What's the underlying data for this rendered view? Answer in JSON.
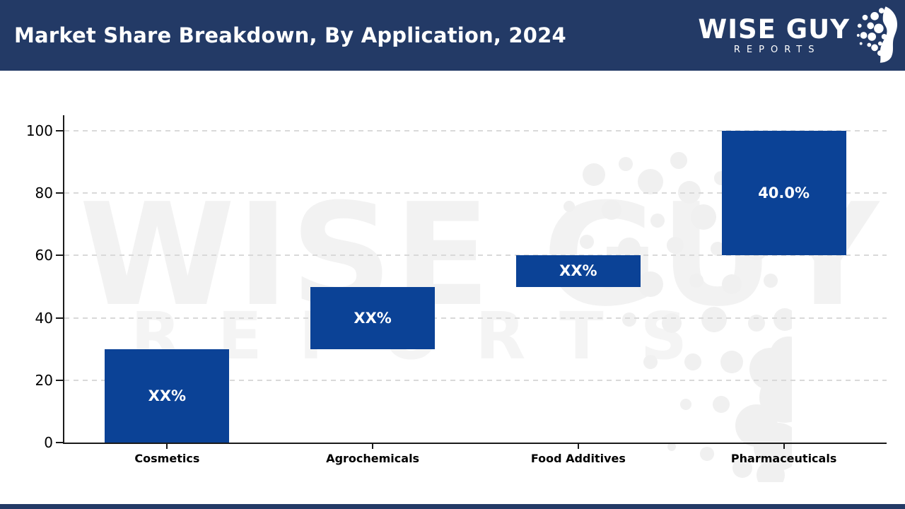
{
  "header": {
    "title": "Market Share Breakdown, By Application, 2024",
    "logo": {
      "name": "Wise Guy Reports",
      "line1": "WISE GUY",
      "line2": "REPORTS"
    }
  },
  "watermark": {
    "line1": "WISE GUY",
    "line2": "REPORTS"
  },
  "footer": {},
  "chart_data": {
    "type": "bar",
    "subtype": "waterfall",
    "title": "Market Share Breakdown, By Application, 2024",
    "categories": [
      "Cosmetics",
      "Agrochemicals",
      "Food Additives",
      "Pharmaceuticals"
    ],
    "series": [
      {
        "name": "Market share (%)",
        "starts": [
          0,
          30,
          50,
          60
        ],
        "ends": [
          30,
          50,
          60,
          100
        ],
        "values": [
          30,
          20,
          10,
          40
        ]
      }
    ],
    "bar_labels": [
      "XX%",
      "XX%",
      "XX%",
      "40.0%"
    ],
    "xlabel": "",
    "ylabel": "",
    "yticks": [
      0,
      20,
      40,
      60,
      80,
      100
    ],
    "ylim": [
      0,
      105
    ],
    "grid": "horizontal-dashed",
    "legend_position": "none",
    "colors": {
      "bar": "#0b4296",
      "grid": "#d9d9d9",
      "axis": "#1a1a1a",
      "bar_label": "#ffffff",
      "tick_label": "#000000",
      "header_bg": "#233a66",
      "watermark": "#f2f2f2"
    }
  }
}
